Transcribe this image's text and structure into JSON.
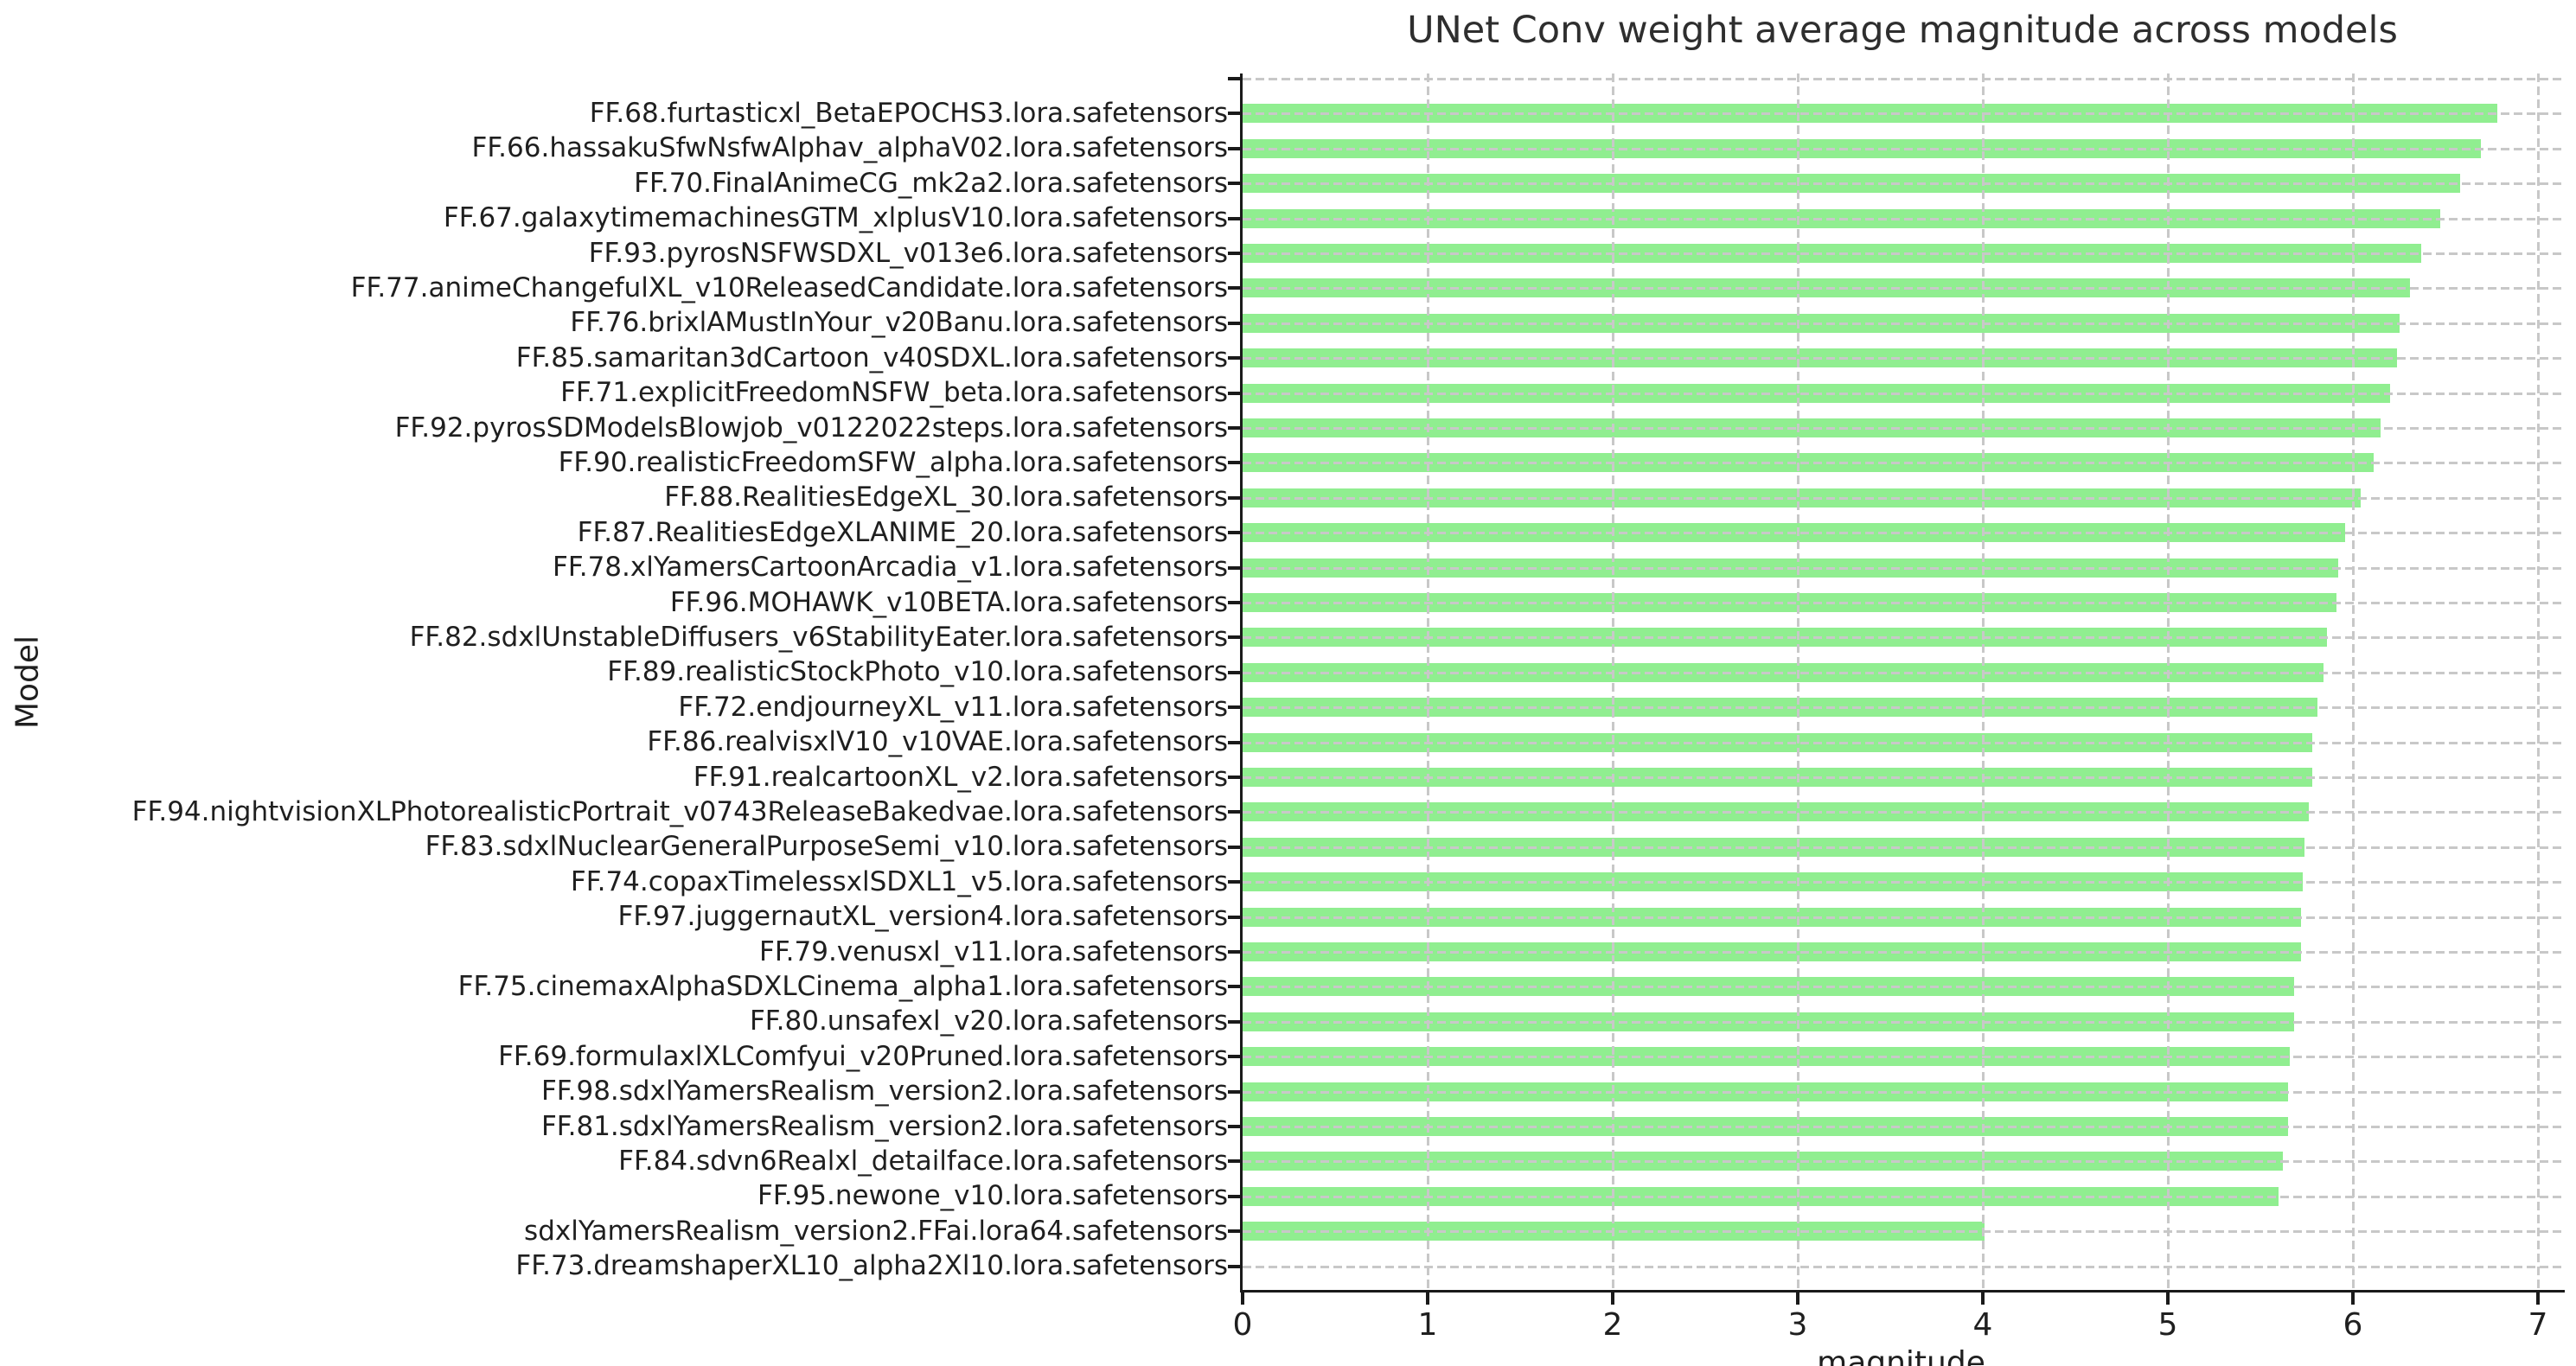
{
  "chart_data": {
    "type": "bar",
    "orientation": "horizontal",
    "title": "UNet Conv weight average magnitude across models",
    "xlabel": "magnitude",
    "ylabel": "Model",
    "xlim": [
      0,
      7.15
    ],
    "x_tick_labels": [
      "0",
      "1",
      "2",
      "3",
      "4",
      "5",
      "6",
      "7"
    ],
    "grid": "dashed gridlines drawn over bars",
    "legend": "none",
    "bar_color": "#90EE90",
    "leading_empty_row": true,
    "categories": [
      "FF.68.furtasticxl_BetaEPOCHS3.lora.safetensors",
      "FF.66.hassakuSfwNsfwAlphav_alphaV02.lora.safetensors",
      "FF.70.FinalAnimeCG_mk2a2.lora.safetensors",
      "FF.67.galaxytimemachinesGTM_xlplusV10.lora.safetensors",
      "FF.93.pyrosNSFWSDXL_v013e6.lora.safetensors",
      "FF.77.animeChangefulXL_v10ReleasedCandidate.lora.safetensors",
      "FF.76.brixlAMustInYour_v20Banu.lora.safetensors",
      "FF.85.samaritan3dCartoon_v40SDXL.lora.safetensors",
      "FF.71.explicitFreedomNSFW_beta.lora.safetensors",
      "FF.92.pyrosSDModelsBlowjob_v0122022steps.lora.safetensors",
      "FF.90.realisticFreedomSFW_alpha.lora.safetensors",
      "FF.88.RealitiesEdgeXL_30.lora.safetensors",
      "FF.87.RealitiesEdgeXLANIME_20.lora.safetensors",
      "FF.78.xlYamersCartoonArcadia_v1.lora.safetensors",
      "FF.96.MOHAWK_v10BETA.lora.safetensors",
      "FF.82.sdxlUnstableDiffusers_v6StabilityEater.lora.safetensors",
      "FF.89.realisticStockPhoto_v10.lora.safetensors",
      "FF.72.endjourneyXL_v11.lora.safetensors",
      "FF.86.realvisxlV10_v10VAE.lora.safetensors",
      "FF.91.realcartoonXL_v2.lora.safetensors",
      "FF.94.nightvisionXLPhotorealisticPortrait_v0743ReleaseBakedvae.lora.safetensors",
      "FF.83.sdxlNuclearGeneralPurposeSemi_v10.lora.safetensors",
      "FF.74.copaxTimelessxlSDXL1_v5.lora.safetensors",
      "FF.97.juggernautXL_version4.lora.safetensors",
      "FF.79.venusxl_v11.lora.safetensors",
      "FF.75.cinemaxAlphaSDXLCinema_alpha1.lora.safetensors",
      "FF.80.unsafexl_v20.lora.safetensors",
      "FF.69.formulaxlXLComfyui_v20Pruned.lora.safetensors",
      "FF.98.sdxlYamersRealism_version2.lora.safetensors",
      "FF.81.sdxlYamersRealism_version2.lora.safetensors",
      "FF.84.sdvn6Realxl_detailface.lora.safetensors",
      "FF.95.newone_v10.lora.safetensors",
      "sdxlYamersRealism_version2.FFai.lora64.safetensors",
      "FF.73.dreamshaperXL10_alpha2Xl10.lora.safetensors"
    ],
    "values": [
      6.78,
      6.69,
      6.58,
      6.47,
      6.37,
      6.31,
      6.25,
      6.24,
      6.2,
      6.15,
      6.11,
      6.04,
      5.96,
      5.92,
      5.91,
      5.86,
      5.84,
      5.81,
      5.78,
      5.78,
      5.76,
      5.74,
      5.73,
      5.72,
      5.72,
      5.68,
      5.68,
      5.66,
      5.65,
      5.65,
      5.62,
      5.6,
      4.01,
      0.0
    ]
  }
}
